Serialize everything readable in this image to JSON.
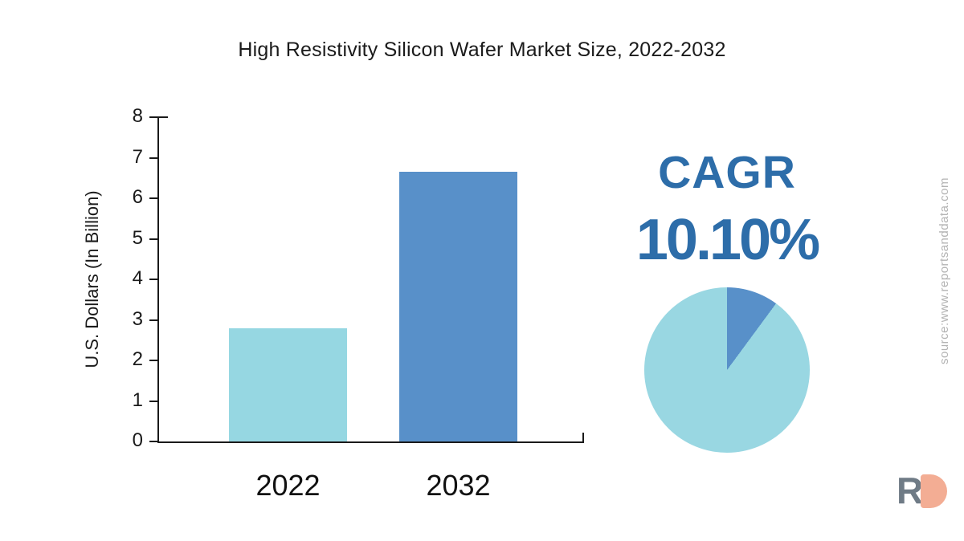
{
  "page": {
    "title": "High Resistivity Silicon Wafer Market Size, 2022-2032"
  },
  "cagr": {
    "label": "CAGR",
    "value": "10.10%"
  },
  "watermark": {
    "source_text": "source:www.reportsanddata.com"
  },
  "logo": {
    "letter": "R"
  },
  "colors": {
    "bar_2022_light_blue": "#96d7e2",
    "bar_2032_medium_blue": "#5890c9",
    "pie_light_blue": "#99d7e2",
    "pie_dark_blue": "#5890c9",
    "cagr_text_blue": "#2d6da9",
    "axis_black": "#1a1a1a",
    "source_gray": "#b3b3b3",
    "logo_gray": "#6f7b86",
    "logo_peach": "#f3ad94"
  },
  "chart_data": [
    {
      "type": "bar",
      "title": "High Resistivity Silicon Wafer Market Size, 2022-2032",
      "categories": [
        "2022",
        "2032"
      ],
      "values": [
        2.8,
        6.65
      ],
      "xlabel": "",
      "ylabel": "U.S. Dollars (In Billion)",
      "ylim": [
        0,
        8
      ],
      "yticks": [
        0,
        1,
        2,
        3,
        4,
        5,
        6,
        7,
        8
      ],
      "bar_colors": [
        "#96d7e2",
        "#5890c9"
      ],
      "grid": false,
      "legend": "none"
    },
    {
      "type": "pie",
      "title": "CAGR 10.10%",
      "slices": [
        {
          "label": "cagr-highlight",
          "value": 10.1,
          "color": "#5890c9"
        },
        {
          "label": "remainder",
          "value": 89.9,
          "color": "#99d7e2"
        }
      ],
      "start_angle_deg": 0,
      "direction": "clockwise",
      "legend": "none"
    }
  ]
}
